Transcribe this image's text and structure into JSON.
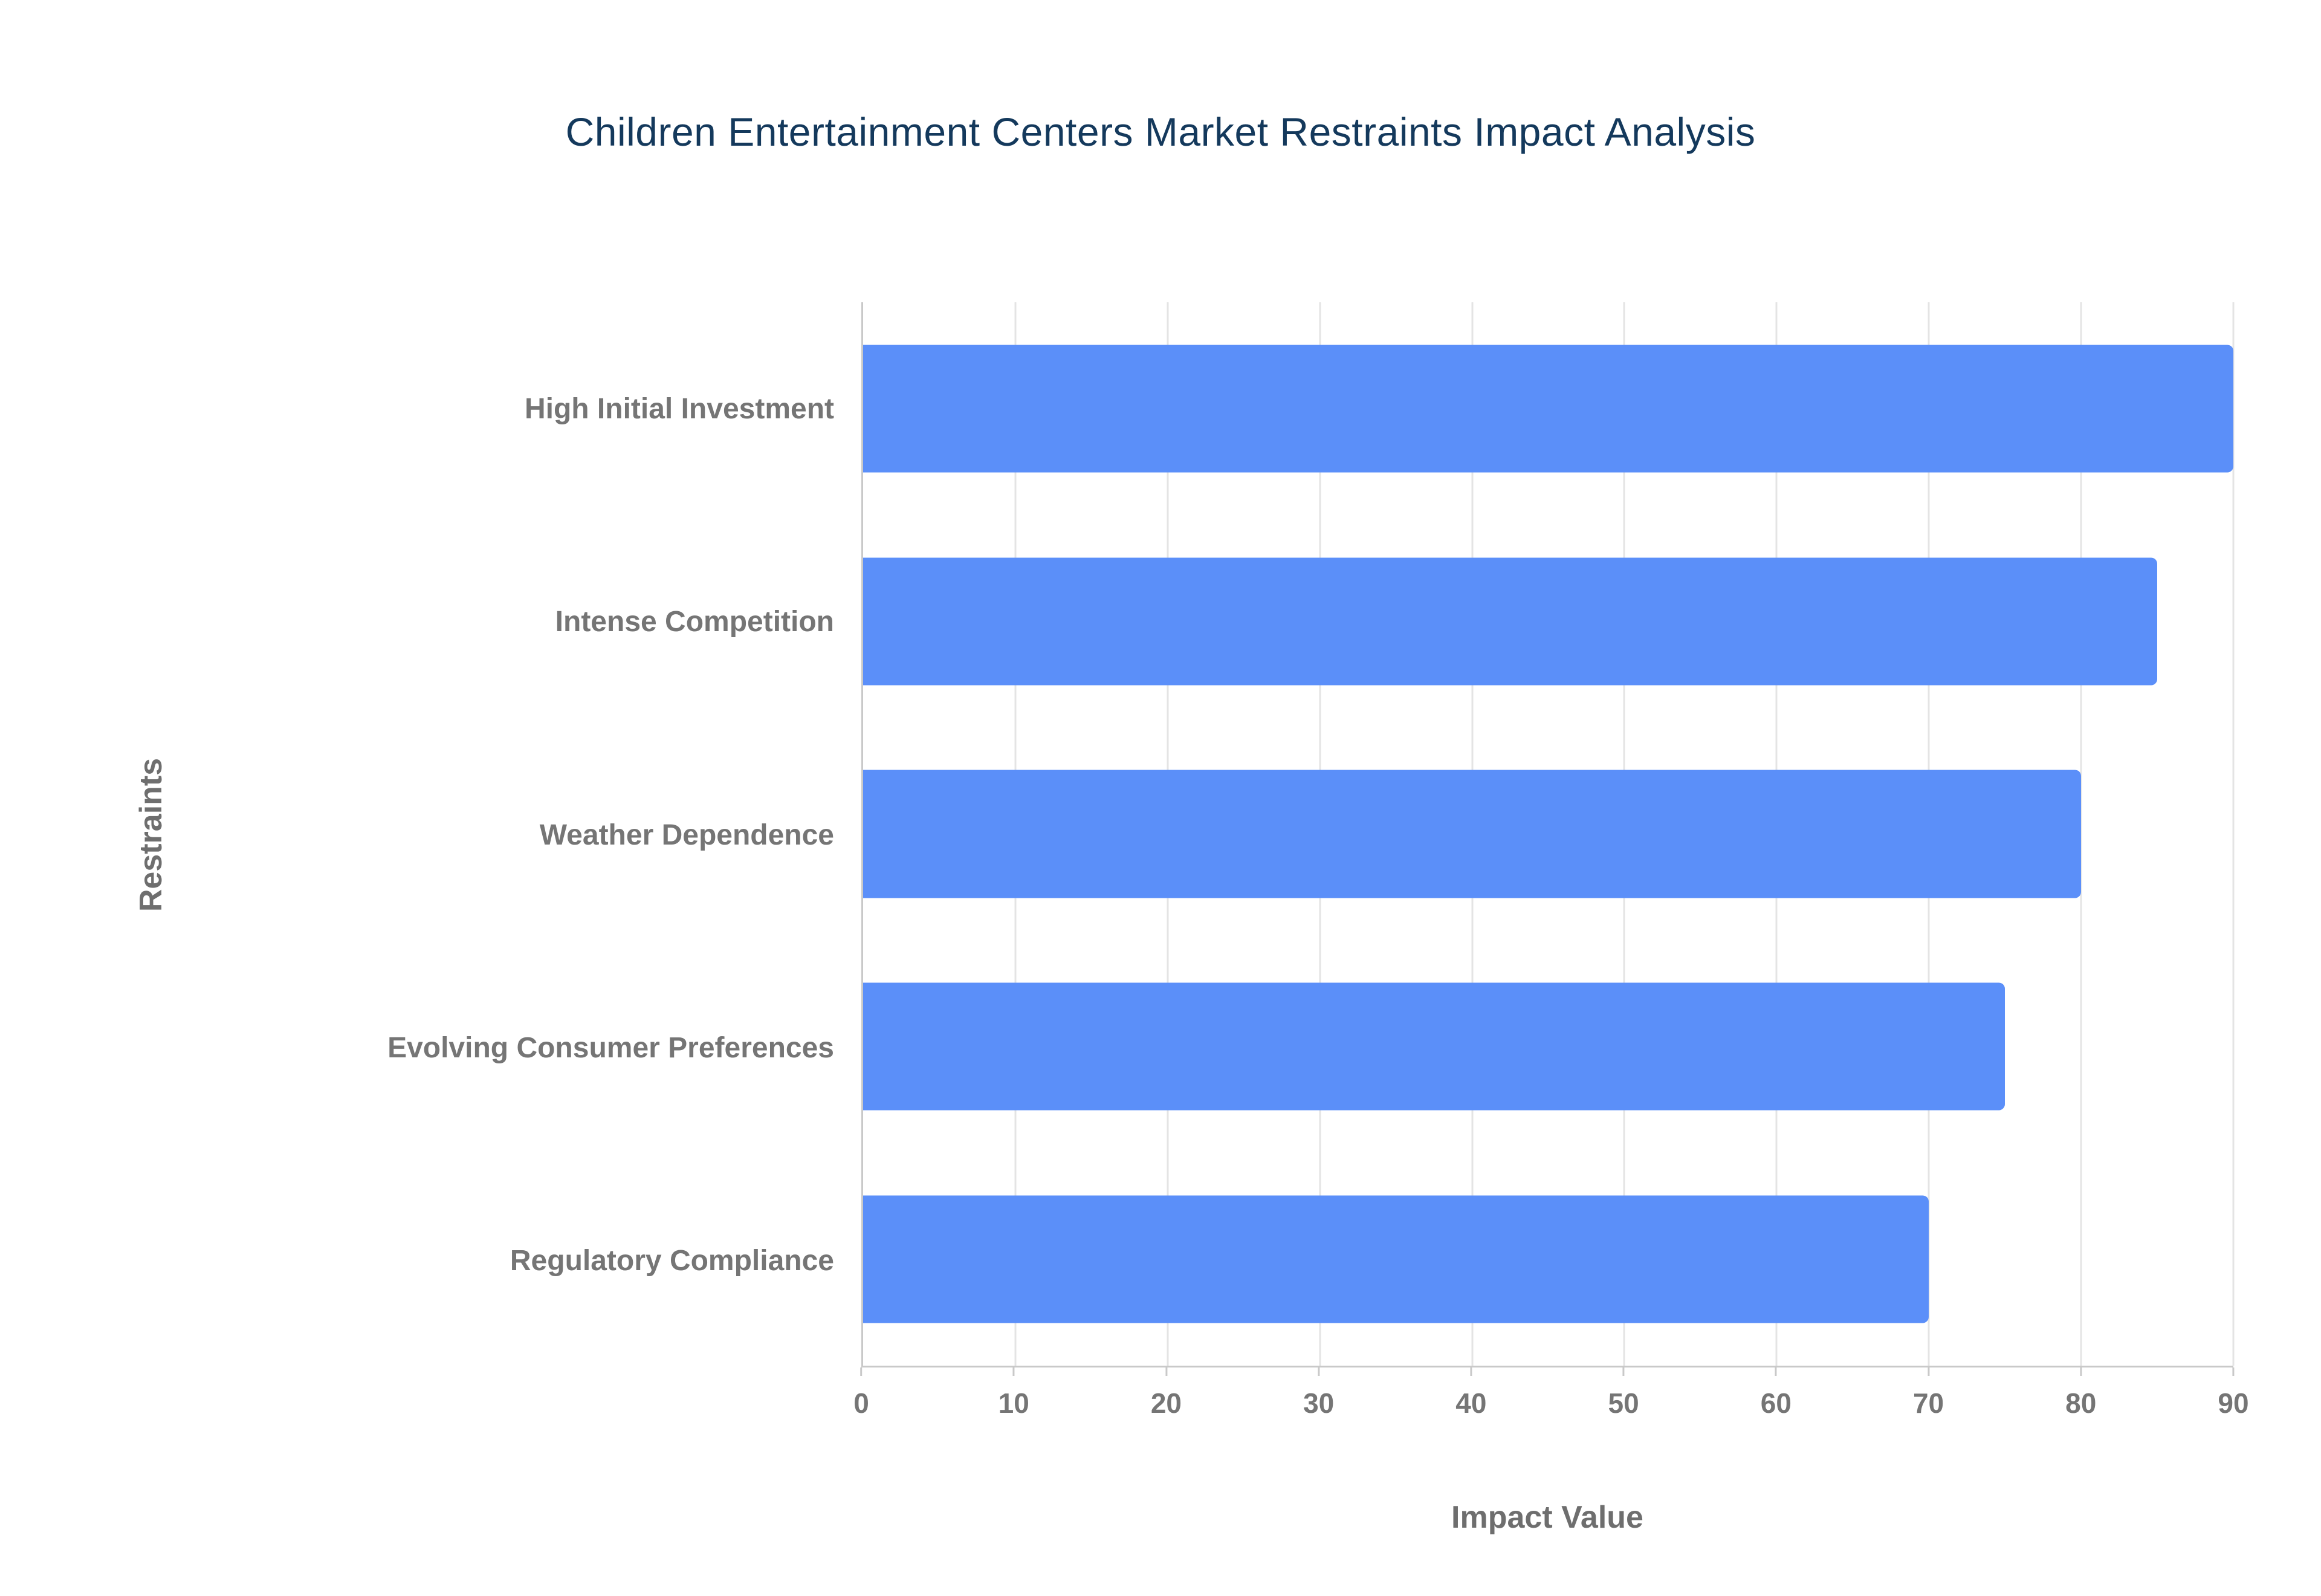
{
  "chart_data": {
    "type": "bar",
    "orientation": "horizontal",
    "title": "Children Entertainment Centers Market Restraints Impact Analysis",
    "xlabel": "Impact Value",
    "ylabel": "Restraints",
    "categories": [
      "High Initial Investment",
      "Intense Competition",
      "Weather Dependence",
      "Evolving Consumer Preferences",
      "Regulatory Compliance"
    ],
    "values": [
      90,
      85,
      80,
      75,
      70
    ],
    "xlim": [
      0,
      90
    ],
    "xticks": [
      0,
      10,
      20,
      30,
      40,
      50,
      60,
      70,
      80,
      90
    ],
    "grid": true,
    "legend": false
  },
  "colors": {
    "background": "#ffffff",
    "bar": "#5B8FF9",
    "title": "#14395c",
    "category_label": "#757575",
    "tick_label": "#757575",
    "axis_title": "#6e6e6e",
    "gridline": "#e4e4e4",
    "axis_line": "#c9c9c9"
  }
}
